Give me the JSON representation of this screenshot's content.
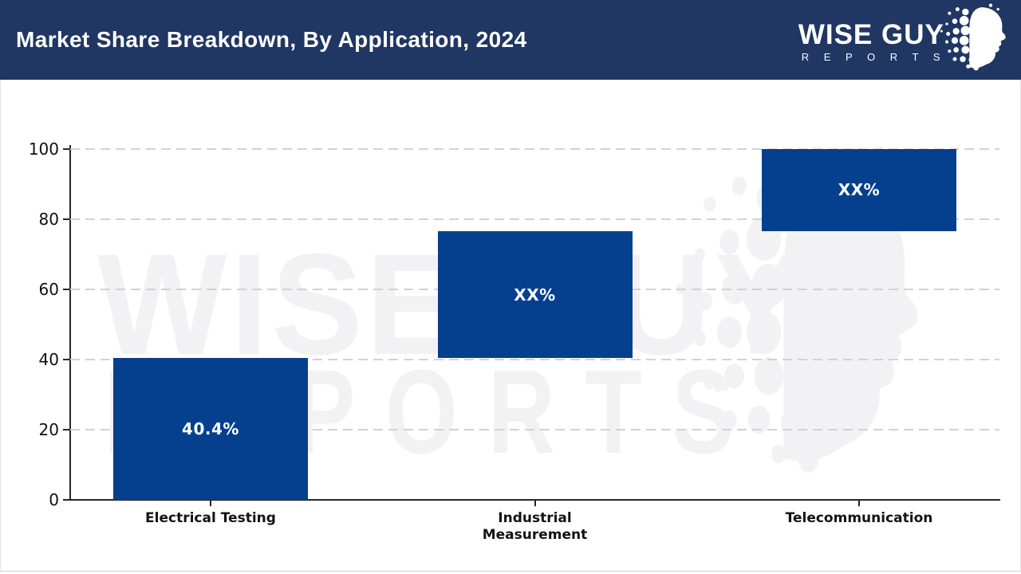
{
  "header": {
    "title": "Market Share Breakdown, By Application, 2024",
    "bg_color": "#203663",
    "logo": {
      "line1": "WISE GUY",
      "line2": "R E P O R T S"
    }
  },
  "watermark": {
    "line1": "WISE GUY",
    "line2": "REPORTS"
  },
  "chart_data": {
    "type": "bar",
    "subtype": "floating-segment breakdown (segments stack from 0 to 100)",
    "title": "Market Share Breakdown, By Application, 2024",
    "categories": [
      [
        "Electrical Testing"
      ],
      [
        "Industrial",
        "Measurement"
      ],
      [
        "Telecommunication"
      ]
    ],
    "series": [
      {
        "name": "Electrical Testing",
        "start": 0,
        "end": 40.4,
        "label": "40.4%"
      },
      {
        "name": "Industrial Measurement",
        "start": 40.4,
        "end": 76.6,
        "label": "XX%"
      },
      {
        "name": "Telecommunication",
        "start": 76.6,
        "end": 100,
        "label": "XX%"
      }
    ],
    "ylim": [
      0,
      100
    ],
    "yticks": [
      0,
      20,
      40,
      60,
      80,
      100
    ],
    "xlabel": "",
    "ylabel": "",
    "grid": "horizontal dashed",
    "legend": "none",
    "bar_color": "#05408f",
    "grid_color": "#d2d2d2",
    "axis_color": "#272727",
    "value_label_color": "#ffffff"
  }
}
